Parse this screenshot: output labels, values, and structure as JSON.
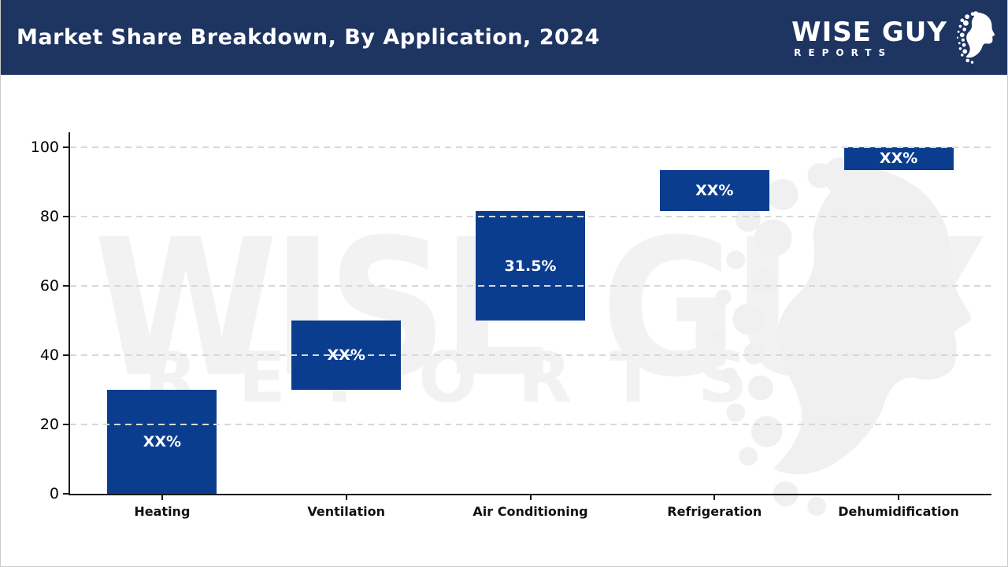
{
  "header": {
    "title": "Market Share Breakdown, By Application, 2024",
    "background_color": "#1e3461",
    "logo": {
      "line1": "WISE GUY",
      "line2": "REPORTS"
    }
  },
  "watermark": {
    "line1": "WISE GUY",
    "line2": "REPORTS"
  },
  "chart_data": {
    "type": "bar",
    "variant": "waterfall",
    "title": "Market Share Breakdown, By Application, 2024",
    "categories": [
      "Heating",
      "Ventilation",
      "Air Conditioning",
      "Refrigeration",
      "Dehumidification"
    ],
    "values": [
      30,
      20,
      31.5,
      12,
      6.5
    ],
    "segments": [
      {
        "category": "Heating",
        "start": 0,
        "end": 30,
        "label": "XX%"
      },
      {
        "category": "Ventilation",
        "start": 30,
        "end": 50,
        "label": "XX%"
      },
      {
        "category": "Air Conditioning",
        "start": 50,
        "end": 81.5,
        "label": "31.5%"
      },
      {
        "category": "Refrigeration",
        "start": 81.5,
        "end": 93.5,
        "label": "XX%"
      },
      {
        "category": "Dehumidification",
        "start": 93.5,
        "end": 100,
        "label": "XX%"
      }
    ],
    "y_ticks": [
      0,
      20,
      40,
      60,
      80,
      100
    ],
    "ylim": [
      0,
      104
    ],
    "xlabel": "",
    "ylabel": "",
    "legend": "none",
    "grid": "horizontal dashed, drawn over bars",
    "bar_color": "#0b3d8f",
    "bar_label_color": "#ffffff",
    "gridline_color": "#d8d8d8"
  }
}
